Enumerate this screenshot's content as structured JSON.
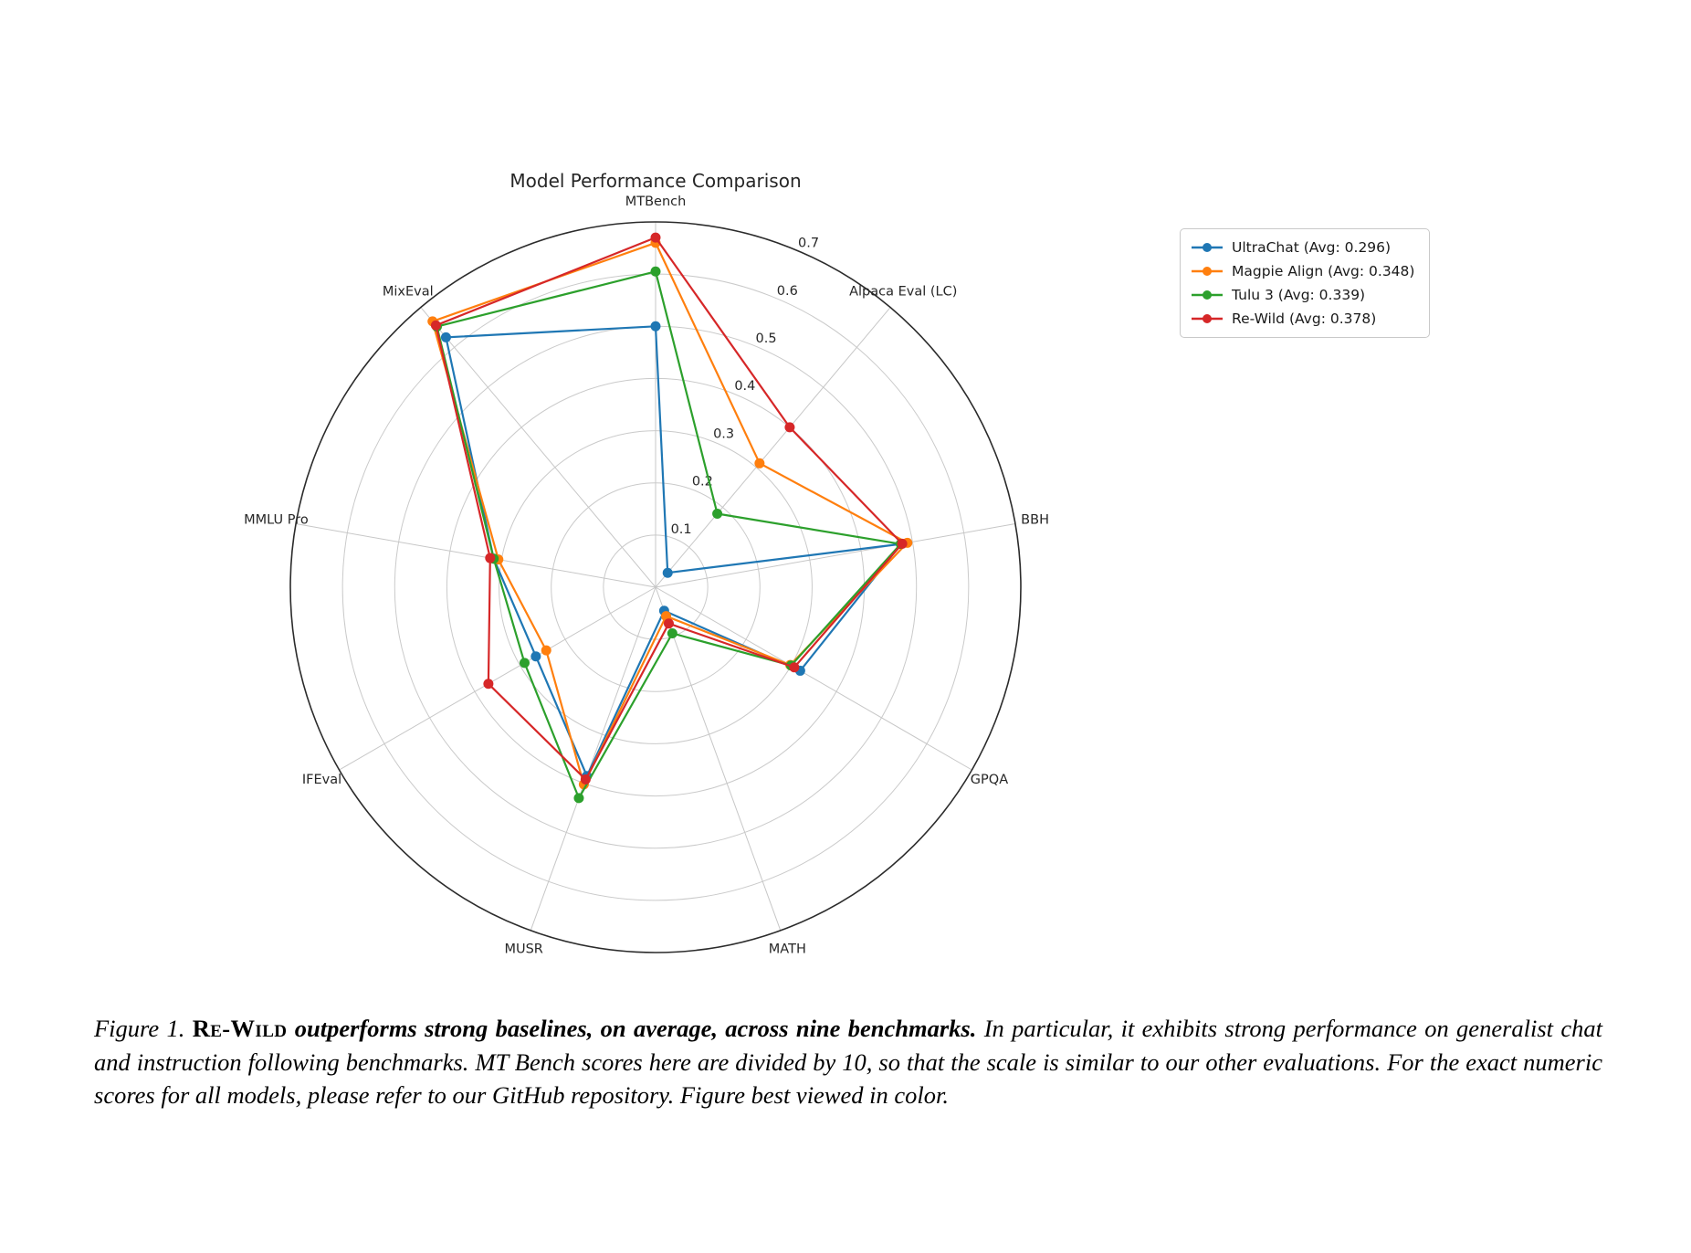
{
  "chart": {
    "title": "Model Performance Comparison"
  },
  "chart_data": {
    "type": "radar",
    "title": "Model Performance Comparison",
    "categories": [
      "MTBench",
      "Alpaca Eval (LC)",
      "BBH",
      "GPQA",
      "MATH",
      "MUSR",
      "IFEval",
      "MMLU Pro",
      "MixEval"
    ],
    "series": [
      {
        "name": "UltraChat (Avg: 0.296)",
        "color": "#1f77b4",
        "values": [
          0.5,
          0.036,
          0.478,
          0.32,
          0.048,
          0.385,
          0.265,
          0.315,
          0.625
        ]
      },
      {
        "name": "Magpie Align (Avg: 0.348)",
        "color": "#ff7f0e",
        "values": [
          0.66,
          0.31,
          0.49,
          0.298,
          0.059,
          0.402,
          0.242,
          0.306,
          0.665
        ]
      },
      {
        "name": "Tulu 3 (Avg: 0.339)",
        "color": "#2ca02c",
        "values": [
          0.605,
          0.184,
          0.477,
          0.3,
          0.094,
          0.43,
          0.29,
          0.315,
          0.652
        ]
      },
      {
        "name": "Re-Wild (Avg: 0.378)",
        "color": "#d62728",
        "values": [
          0.67,
          0.4,
          0.48,
          0.307,
          0.074,
          0.392,
          0.37,
          0.322,
          0.655
        ]
      }
    ],
    "radial_ticks": [
      "0.1",
      "0.2",
      "0.3",
      "0.4",
      "0.5",
      "0.6",
      "0.7"
    ],
    "rmax": 0.7,
    "grid": true,
    "legend_position": "upper right",
    "grid_color": "#cacaca",
    "outer_circle_color": "#2b2b2b",
    "tick_label_color": "#262626",
    "axis_label_color": "#262626"
  },
  "caption": {
    "figure_label": "Figure 1. ",
    "method_name": "Re-Wild",
    "bold_claim": " outperforms strong baselines, on average, across nine benchmarks.",
    "body": " In particular, it exhibits strong performance on generalist chat and instruction following benchmarks. MT Bench scores here are divided by 10, so that the scale is similar to our other evaluations. For the exact numeric scores for all models, please refer to our GitHub repository. Figure best viewed in color."
  }
}
